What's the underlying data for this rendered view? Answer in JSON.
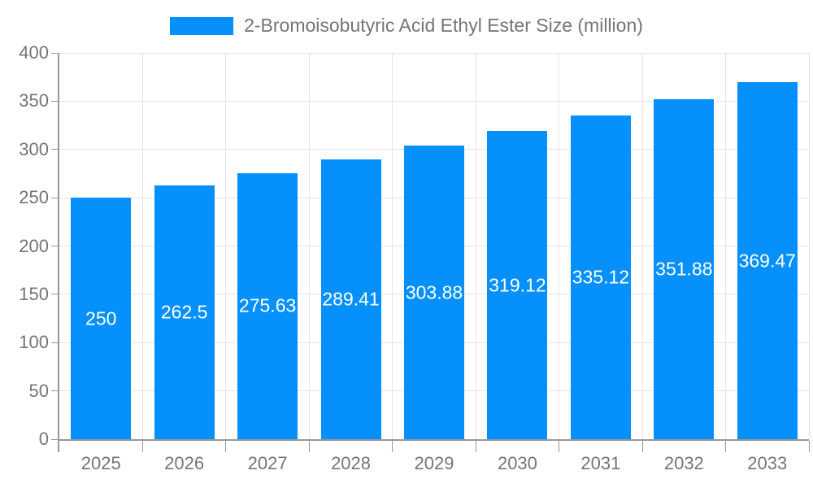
{
  "legend": {
    "label": "2-Bromoisobutyric Acid Ethyl Ester Size (million)"
  },
  "chart_data": {
    "type": "bar",
    "title": "2-Bromoisobutyric Acid Ethyl Ester Size (million)",
    "categories": [
      "2025",
      "2026",
      "2027",
      "2028",
      "2029",
      "2030",
      "2031",
      "2032",
      "2033"
    ],
    "values": [
      250,
      262.5,
      275.63,
      289.41,
      303.88,
      319.12,
      335.12,
      351.88,
      369.47
    ],
    "value_labels": [
      "250",
      "262.5",
      "275.63",
      "289.41",
      "303.88",
      "319.12",
      "335.12",
      "351.88",
      "369.47"
    ],
    "xlabel": "",
    "ylabel": "",
    "ylim": [
      0,
      400
    ],
    "ytick_step": 50,
    "ytick_labels": [
      "0",
      "50",
      "100",
      "150",
      "200",
      "250",
      "300",
      "350",
      "400"
    ],
    "grid": true,
    "legend_position": "top",
    "bar_color": "#0590fc",
    "value_label_color": "#ffffff",
    "axis_text_color": "#757575",
    "axis_line_color": "#999999",
    "grid_color": "#e4e4e4",
    "background_color": "#ffffff"
  }
}
